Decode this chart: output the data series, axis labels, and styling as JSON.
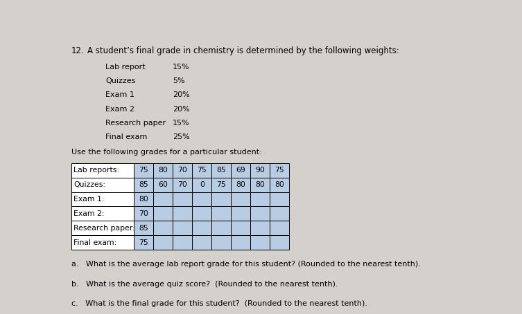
{
  "title_num": "12.",
  "title_text": " A student’s final grade in chemistry is determined by the following weights:",
  "weights": [
    [
      "Lab report",
      "15%"
    ],
    [
      "Quizzes",
      "5%"
    ],
    [
      "Exam 1",
      "20%"
    ],
    [
      "Exam 2",
      "20%"
    ],
    [
      "Research paper",
      "15%"
    ],
    [
      "Final exam",
      "25%"
    ]
  ],
  "use_text": "Use the following grades for a particular student:",
  "table_rows": [
    [
      "Lab reports:",
      "75",
      "80",
      "70",
      "75",
      "85",
      "69",
      "90",
      "75"
    ],
    [
      "Quizzes:",
      "85",
      "60",
      "70",
      "0",
      "75",
      "80",
      "80",
      "80"
    ],
    [
      "Exam 1:",
      "80",
      "",
      "",
      "",
      "",
      "",
      "",
      ""
    ],
    [
      "Exam 2:",
      "70",
      "",
      "",
      "",
      "",
      "",
      "",
      ""
    ],
    [
      "Research paper:",
      "85",
      "",
      "",
      "",
      "",
      "",
      "",
      ""
    ],
    [
      "Final exam:",
      "75",
      "",
      "",
      "",
      "",
      "",
      "",
      ""
    ]
  ],
  "questions": [
    "a.   What is the average lab report grade for this student? (Rounded to the nearest tenth).",
    "b.   What is the average quiz score?  (Rounded to the nearest tenth).",
    "c.   What is the final grade for this student?  (Rounded to the nearest tenth)."
  ],
  "bg_color": "#d4d0cb",
  "table_fill_color": "#b8cce4",
  "table_label_color": "#ffffff",
  "table_line_color": "#000000",
  "text_color": "#000000",
  "font_size_title": 8.5,
  "font_size_body": 8.0,
  "font_size_table": 7.8,
  "font_size_questions": 8.0
}
